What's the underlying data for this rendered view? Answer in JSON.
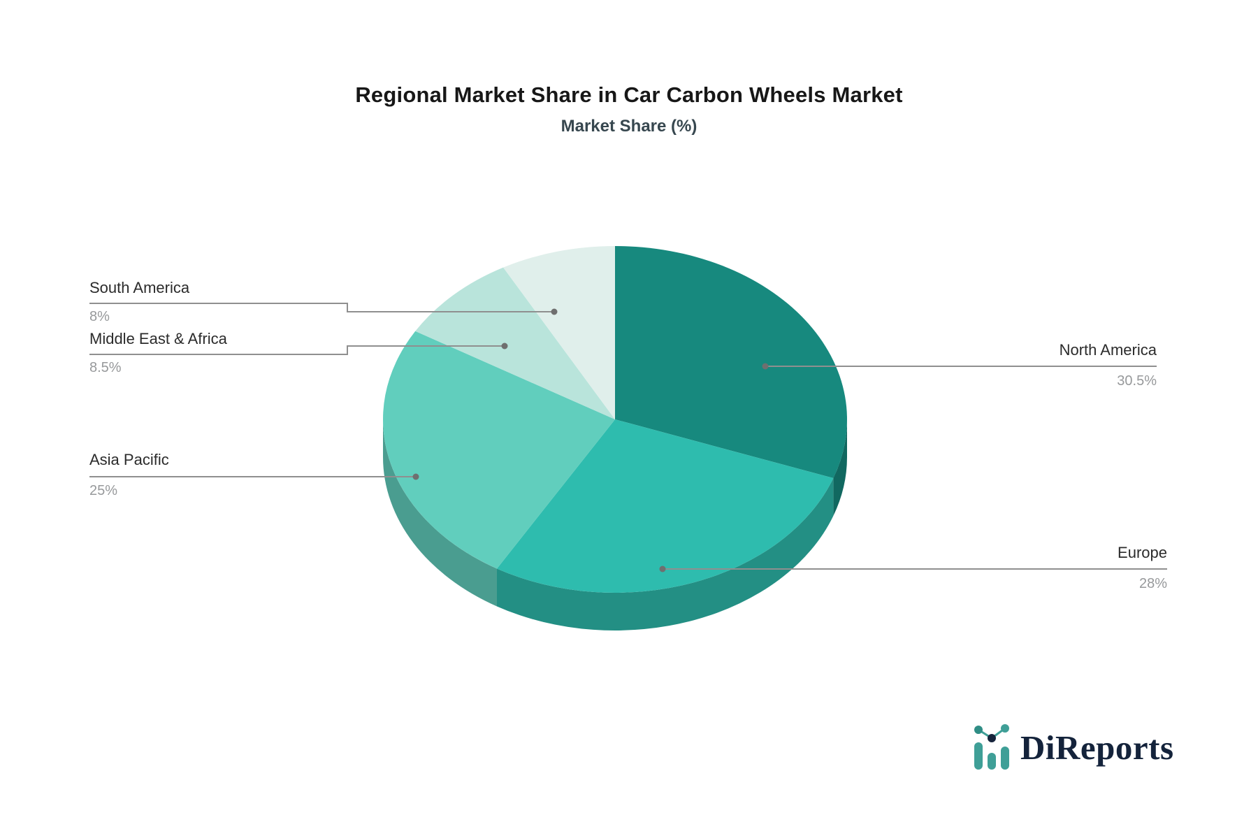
{
  "header": {
    "title": "Regional Market Share in Car Carbon Wheels Market",
    "subtitle": "Market Share (%)"
  },
  "chart_data": {
    "type": "pie",
    "style": "3d-pie-with-depth",
    "title": "Regional Market Share in Car Carbon Wheels Market",
    "subtitle": "Market Share (%)",
    "unit": "%",
    "start_angle": "12-oclock",
    "direction": "clockwise",
    "legend_position": "callout-labels-around-pie",
    "slices": [
      {
        "label": "North America",
        "value": 30.5,
        "display_value": "30.5%",
        "color": "#17897e",
        "callout_side": "right"
      },
      {
        "label": "Europe",
        "value": 28,
        "display_value": "28%",
        "color": "#2ebcae",
        "callout_side": "right"
      },
      {
        "label": "Asia Pacific",
        "value": 25,
        "display_value": "25%",
        "color": "#61cebd",
        "callout_side": "left"
      },
      {
        "label": "Middle East & Africa",
        "value": 8.5,
        "display_value": "8.5%",
        "color": "#b9e4db",
        "callout_side": "left"
      },
      {
        "label": "South America",
        "value": 8,
        "display_value": "8%",
        "color": "#e0efeb",
        "callout_side": "left"
      }
    ],
    "colors": {
      "label_text": "#2b2b2b",
      "value_text": "#97999b",
      "leader_line": "#8f8f8f",
      "leader_dot": "#6f6f6f",
      "title_text": "#171717",
      "subtitle_text": "#37474f"
    }
  },
  "branding": {
    "logo_text": "DiReports",
    "logo_text_color": "#14233b",
    "logo_accent_color": "#3f9f97",
    "logo_dark_dot_color": "#16243c"
  }
}
